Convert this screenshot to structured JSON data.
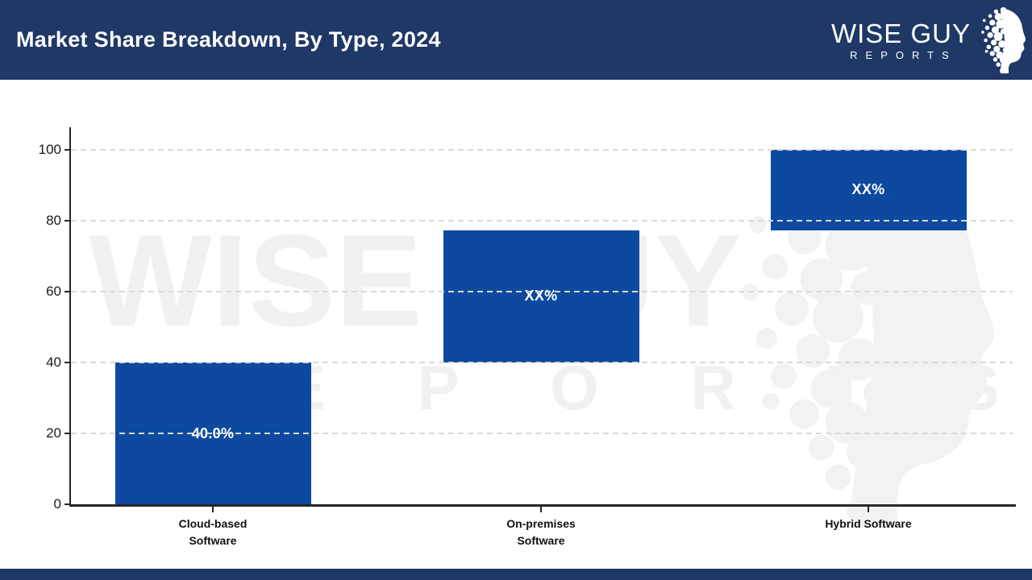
{
  "header": {
    "title": "Market Share Breakdown, By Type, 2024",
    "logo": {
      "name": "Wise Guy Reports",
      "line1": "WISE GUY",
      "line2": "REPORTS"
    },
    "bg_color": "#1f3866"
  },
  "watermark": {
    "big_text": "WISE GUY",
    "small_text": "R E P O R T S"
  },
  "chart_data": {
    "type": "bar",
    "subtype": "floating-segment bars (waterfall-style market share breakdown)",
    "title": "Market Share Breakdown, By Type, 2024",
    "categories": [
      "Cloud-based Software",
      "On-premises Software",
      "Hybrid Software"
    ],
    "bars": [
      {
        "category": "Cloud-based Software",
        "lines": [
          "Cloud-based",
          "Software"
        ],
        "start": 0,
        "end": 40,
        "label": "40.0%"
      },
      {
        "category": "On-premises Software",
        "lines": [
          "On-premises",
          "Software"
        ],
        "start": 40,
        "end": 77.3,
        "label": "XX%"
      },
      {
        "category": "Hybrid Software",
        "lines": [
          "Hybrid Software"
        ],
        "start": 77.3,
        "end": 100,
        "label": "XX%"
      }
    ],
    "ylim": [
      0,
      100
    ],
    "yticks": [
      0,
      20,
      40,
      60,
      80,
      100
    ],
    "grid": "horizontal dashed",
    "legend": "none",
    "bar_color": "#0d4a9f",
    "bar_label_color": "#ffffff",
    "axis_color": "#262626",
    "gridline_color": "#d9d9d9"
  },
  "footer": {
    "bg_color": "#1f3866"
  }
}
